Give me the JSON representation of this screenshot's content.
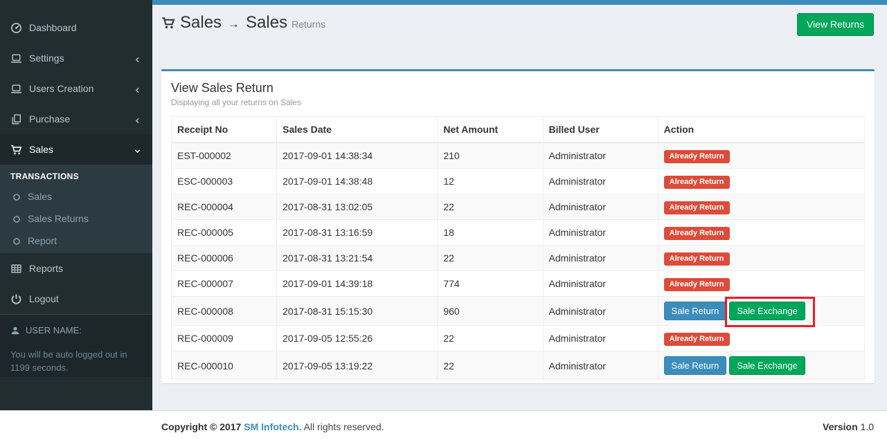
{
  "sidebar": {
    "items": [
      {
        "label": "Dashboard",
        "icon": "dashboard-icon"
      },
      {
        "label": "Settings",
        "icon": "laptop-icon",
        "chevron": "left"
      },
      {
        "label": "Users Creation",
        "icon": "laptop-icon",
        "chevron": "left"
      },
      {
        "label": "Purchase",
        "icon": "copy-icon",
        "chevron": "left"
      },
      {
        "label": "Sales",
        "icon": "cart-icon",
        "chevron": "down",
        "active": true
      }
    ],
    "transactions_header": "TRANSACTIONS",
    "submenu": [
      {
        "label": "Sales"
      },
      {
        "label": "Sales Returns"
      },
      {
        "label": "Report"
      }
    ],
    "reports_label": "Reports",
    "logout_label": "Logout",
    "user_label": "USER NAME:",
    "auto_logout_text": "You will be auto logged out in 1199 seconds."
  },
  "header": {
    "section": "Sales",
    "arrow": "→",
    "page": "Sales",
    "page_suffix": "Returns",
    "view_returns_label": "View Returns"
  },
  "panel": {
    "title": "View Sales Return",
    "subtitle": "Displaying all your returns on Sales"
  },
  "table": {
    "columns": [
      "Receipt No",
      "Sales Date",
      "Net Amount",
      "Billed User",
      "Action"
    ],
    "action_labels": {
      "already_return": "Already Return",
      "sale_return": "Sale Return",
      "sale_exchange": "Sale Exchange"
    },
    "rows": [
      {
        "receipt_no": "EST-000002",
        "sales_date": "2017-09-01 14:38:34",
        "net_amount": "210",
        "billed_user": "Administrator",
        "actions": [
          "already_return"
        ]
      },
      {
        "receipt_no": "ESC-000003",
        "sales_date": "2017-09-01 14:38:48",
        "net_amount": "12",
        "billed_user": "Administrator",
        "actions": [
          "already_return"
        ]
      },
      {
        "receipt_no": "REC-000004",
        "sales_date": "2017-08-31 13:02:05",
        "net_amount": "22",
        "billed_user": "Administrator",
        "actions": [
          "already_return"
        ]
      },
      {
        "receipt_no": "REC-000005",
        "sales_date": "2017-08-31 13:16:59",
        "net_amount": "18",
        "billed_user": "Administrator",
        "actions": [
          "already_return"
        ]
      },
      {
        "receipt_no": "REC-000006",
        "sales_date": "2017-08-31 13:21:54",
        "net_amount": "22",
        "billed_user": "Administrator",
        "actions": [
          "already_return"
        ]
      },
      {
        "receipt_no": "REC-000007",
        "sales_date": "2017-09-01 14:39:18",
        "net_amount": "774",
        "billed_user": "Administrator",
        "actions": [
          "already_return"
        ]
      },
      {
        "receipt_no": "REC-000008",
        "sales_date": "2017-08-31 15:15:30",
        "net_amount": "960",
        "billed_user": "Administrator",
        "actions": [
          "sale_return",
          "sale_exchange"
        ],
        "highlight": "sale_exchange"
      },
      {
        "receipt_no": "REC-000009",
        "sales_date": "2017-09-05 12:55:26",
        "net_amount": "22",
        "billed_user": "Administrator",
        "actions": [
          "already_return"
        ]
      },
      {
        "receipt_no": "REC-000010",
        "sales_date": "2017-09-05 13:19:22",
        "net_amount": "22",
        "billed_user": "Administrator",
        "actions": [
          "sale_return",
          "sale_exchange"
        ]
      }
    ]
  },
  "footer": {
    "copyright_bold": "Copyright © 2017",
    "company": "SM Infotech.",
    "rights": "All rights reserved.",
    "version_label": "Version",
    "version_value": "1.0"
  },
  "colors": {
    "accent_blue": "#3c8dbc",
    "green": "#00a65a",
    "badge_red": "#dd4b39",
    "annotation_red": "#ed1c24",
    "sidebar_bg": "#222d32",
    "content_bg": "#ecf0f5"
  }
}
